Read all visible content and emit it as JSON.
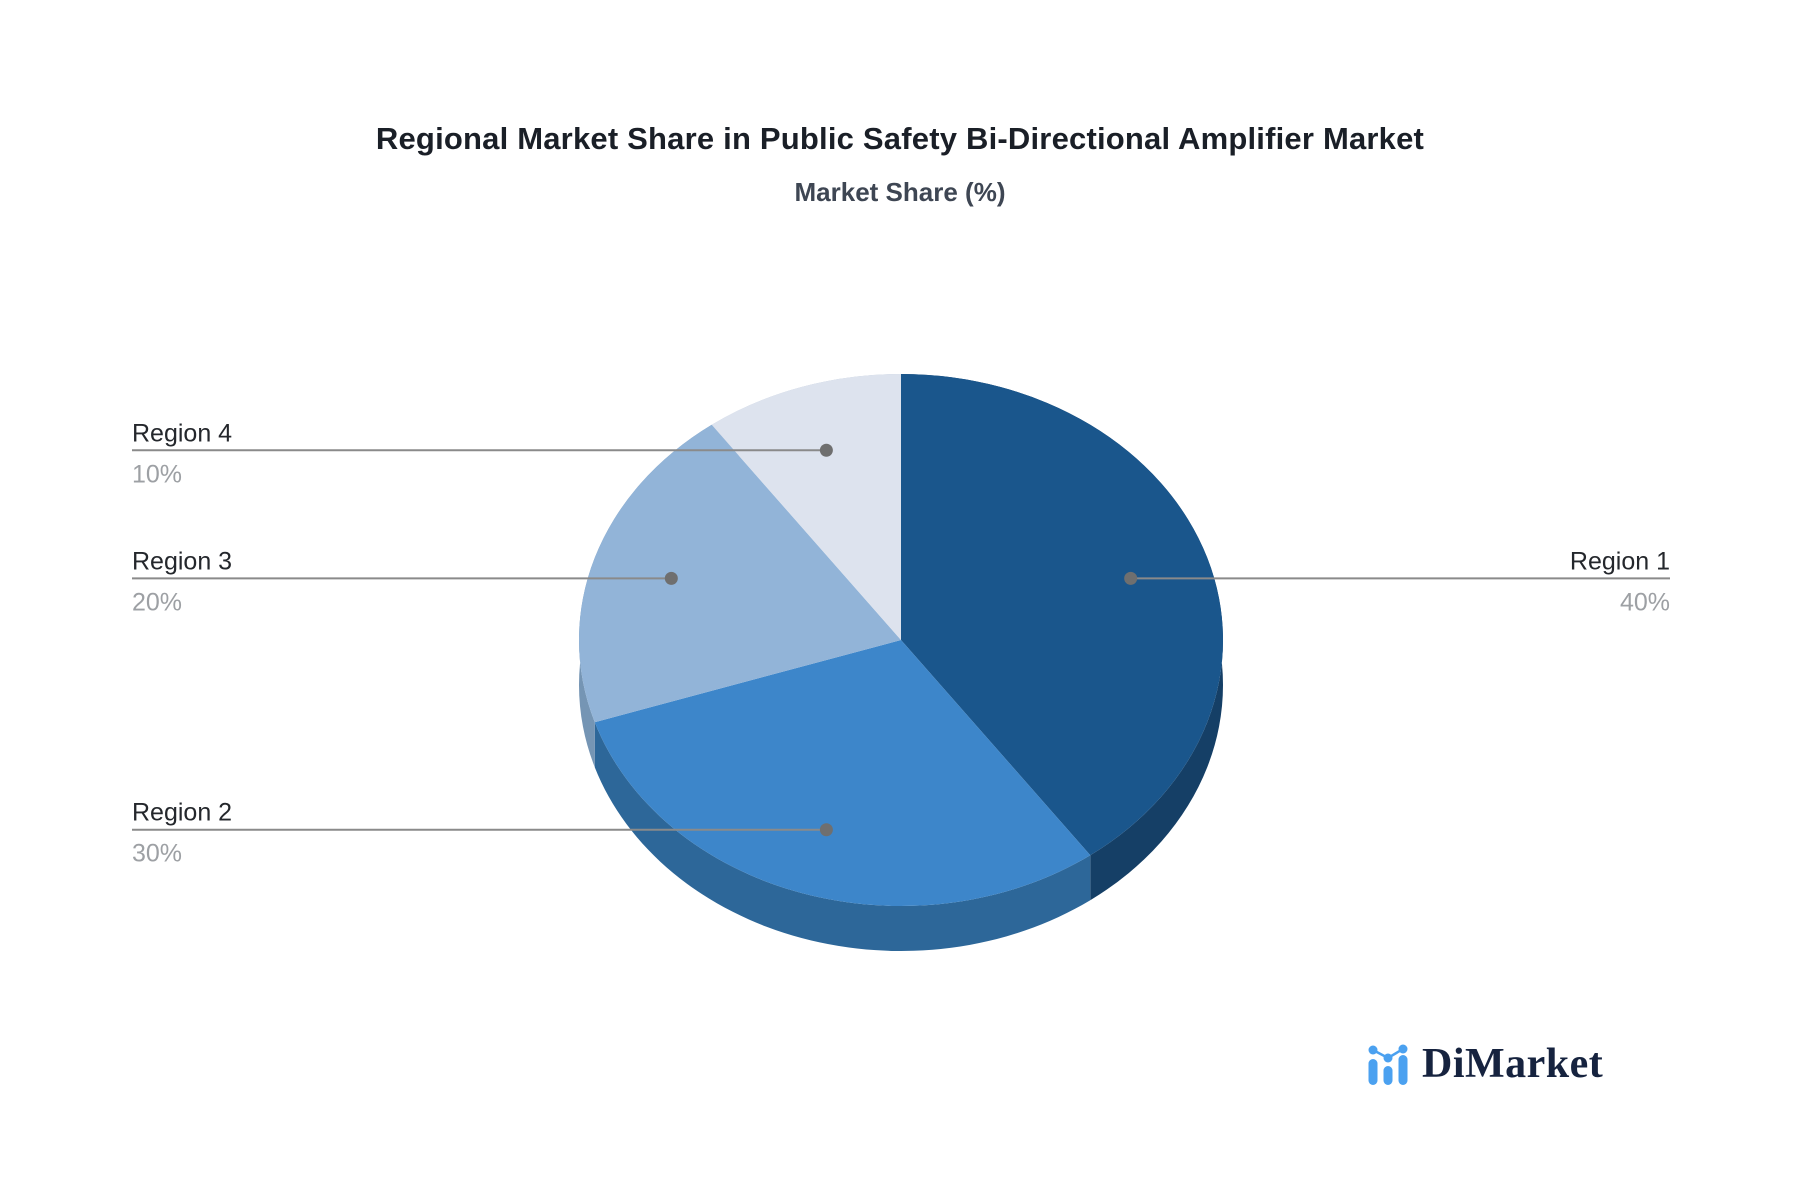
{
  "chart_data": {
    "type": "pie",
    "title": "Regional Market Share in Public Safety Bi-Directional Amplifier Market",
    "subtitle": "Market Share (%)",
    "unit": "%",
    "start_angle_deg": 0,
    "direction": "clockwise",
    "effect": "3d-depth",
    "legend_position": "callout-labels",
    "slices": [
      {
        "label": "Region 1",
        "value": 40,
        "display_value": "40%",
        "color": "#1a568c",
        "depth_color": "#153f66"
      },
      {
        "label": "Region 2",
        "value": 30,
        "display_value": "30%",
        "color": "#3d86ca",
        "depth_color": "#2d6799"
      },
      {
        "label": "Region 3",
        "value": 20,
        "display_value": "20%",
        "color": "#92b4d8",
        "depth_color": "#7595b4"
      },
      {
        "label": "Region 4",
        "value": 10,
        "display_value": "10%",
        "color": "#dde3ee",
        "depth_color": "#b6c2d2"
      }
    ]
  },
  "brand": {
    "name": "DiMarket",
    "icon": "mini-bar-chart-icon",
    "icon_color": "#4ba1f0",
    "text_color": "#16233f"
  },
  "styles": {
    "title_color": "#1a1f27",
    "subtitle_color": "#3e4653",
    "label_color": "#24272c",
    "percent_color": "#9da0a4",
    "leader_line_color": "#8a8a8a",
    "dot_color": "#6f6f6f",
    "background": "#ffffff"
  }
}
